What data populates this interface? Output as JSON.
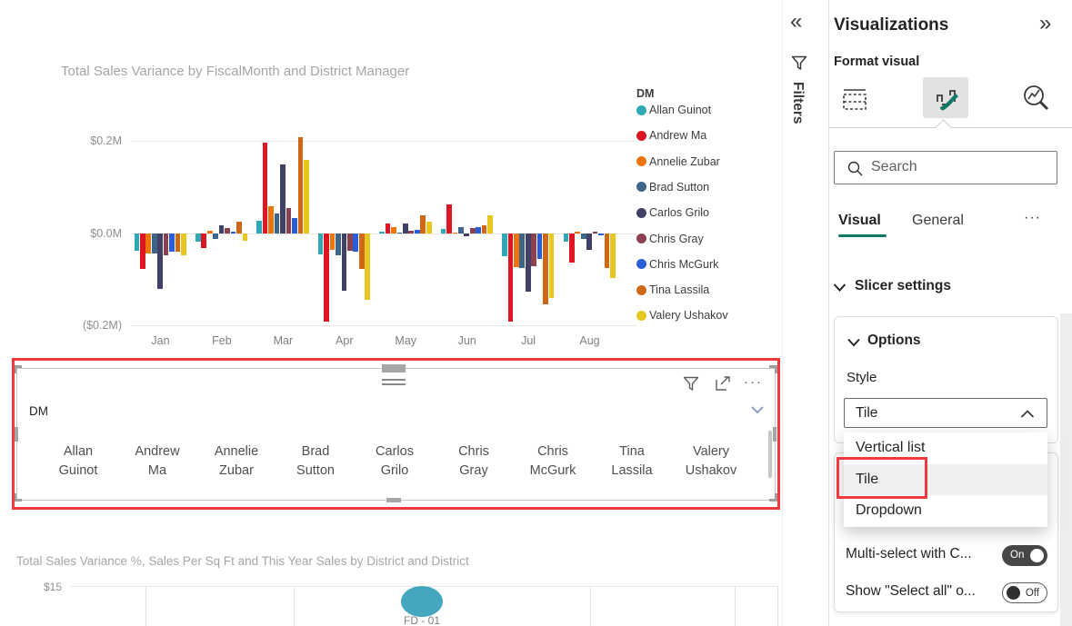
{
  "chart_data": [
    {
      "type": "bar",
      "title": "Total Sales Variance by FiscalMonth and District Manager",
      "legend_title": "DM",
      "legend_position": "right",
      "grid": true,
      "y_ticks": [
        "$0.2M",
        "$0.0M",
        "($0.2M)"
      ],
      "ylim": [
        -0.25,
        0.25
      ],
      "y_unit": "M USD",
      "categories": [
        "Jan",
        "Feb",
        "Mar",
        "Apr",
        "May",
        "Jun",
        "Jul",
        "Aug"
      ],
      "series": [
        {
          "name": "Allan Guinot",
          "color": "#2fa9b5",
          "values": [
            -0.037,
            -0.017,
            0.027,
            -0.046,
            0.003,
            0.01,
            -0.05,
            -0.018
          ]
        },
        {
          "name": "Andrew Ma",
          "color": "#dd1623",
          "values": [
            -0.076,
            -0.032,
            0.198,
            -0.192,
            0.022,
            0.063,
            -0.191,
            -0.063
          ]
        },
        {
          "name": "Annelie Zubar",
          "color": "#ee7309",
          "values": [
            -0.044,
            0.005,
            0.059,
            -0.035,
            0.013,
            0.002,
            -0.073,
            0.004
          ]
        },
        {
          "name": "Brad Sutton",
          "color": "#3d6589",
          "values": [
            -0.044,
            -0.012,
            0.044,
            -0.048,
            0.002,
            0.013,
            -0.075,
            -0.012
          ]
        },
        {
          "name": "Carlos Grilo",
          "color": "#414168",
          "values": [
            -0.12,
            0.018,
            0.15,
            -0.124,
            0.021,
            -0.006,
            -0.126,
            -0.035
          ]
        },
        {
          "name": "Chris Gray",
          "color": "#8a4252",
          "values": [
            -0.048,
            0.012,
            0.056,
            -0.037,
            0.005,
            0.012,
            -0.071,
            0.003
          ]
        },
        {
          "name": "Chris McGurk",
          "color": "#2b5dd6",
          "values": [
            -0.039,
            0.004,
            0.033,
            -0.039,
            0.007,
            0.014,
            -0.056,
            -0.003
          ]
        },
        {
          "name": "Tina Lassila",
          "color": "#ce6817",
          "values": [
            -0.039,
            0.026,
            0.21,
            -0.076,
            0.039,
            0.017,
            -0.154,
            -0.075
          ]
        },
        {
          "name": "Valery Ushakov",
          "color": "#e8c620",
          "values": [
            -0.047,
            -0.015,
            0.159,
            -0.143,
            0.025,
            0.039,
            -0.14,
            -0.097
          ]
        }
      ]
    },
    {
      "type": "scatter",
      "title": "Total Sales Variance %, Sales Per Sq Ft and This Year Sales by District and District",
      "y_ticks": [
        "$15"
      ],
      "points": [
        {
          "label": "FD - 01",
          "color": "#45a7be"
        }
      ]
    }
  ],
  "slicer": {
    "field_label": "DM",
    "items": [
      "Allan Guinot",
      "Andrew Ma",
      "Annelie Zubar",
      "Brad Sutton",
      "Carlos Grilo",
      "Chris Gray",
      "Chris McGurk",
      "Tina Lassila",
      "Valery Ushakov"
    ],
    "more_options": "···"
  },
  "filters_rail": {
    "collapse_glyph": "«",
    "title": "Filters"
  },
  "viz_pane": {
    "title": "Visualizations",
    "expand_glyph": "»",
    "subtitle": "Format visual",
    "search_placeholder": "Search",
    "tabs": [
      {
        "label": "Visual",
        "active": true
      },
      {
        "label": "General",
        "active": false
      }
    ],
    "more_tabs_glyph": "···",
    "sections": {
      "slicer_settings": "Slicer settings",
      "options": "Options"
    },
    "style_label": "Style",
    "style_value": "Tile",
    "style_options": [
      "Vertical list",
      "Tile",
      "Dropdown"
    ],
    "selected_option": "Tile",
    "toggles": [
      {
        "label": "Multi-select with C...",
        "state": "On"
      },
      {
        "label": "Show \"Select all\" o...",
        "state": "Off"
      }
    ],
    "accent_color": "#117865"
  },
  "annotation_color": "#ee3a3e"
}
